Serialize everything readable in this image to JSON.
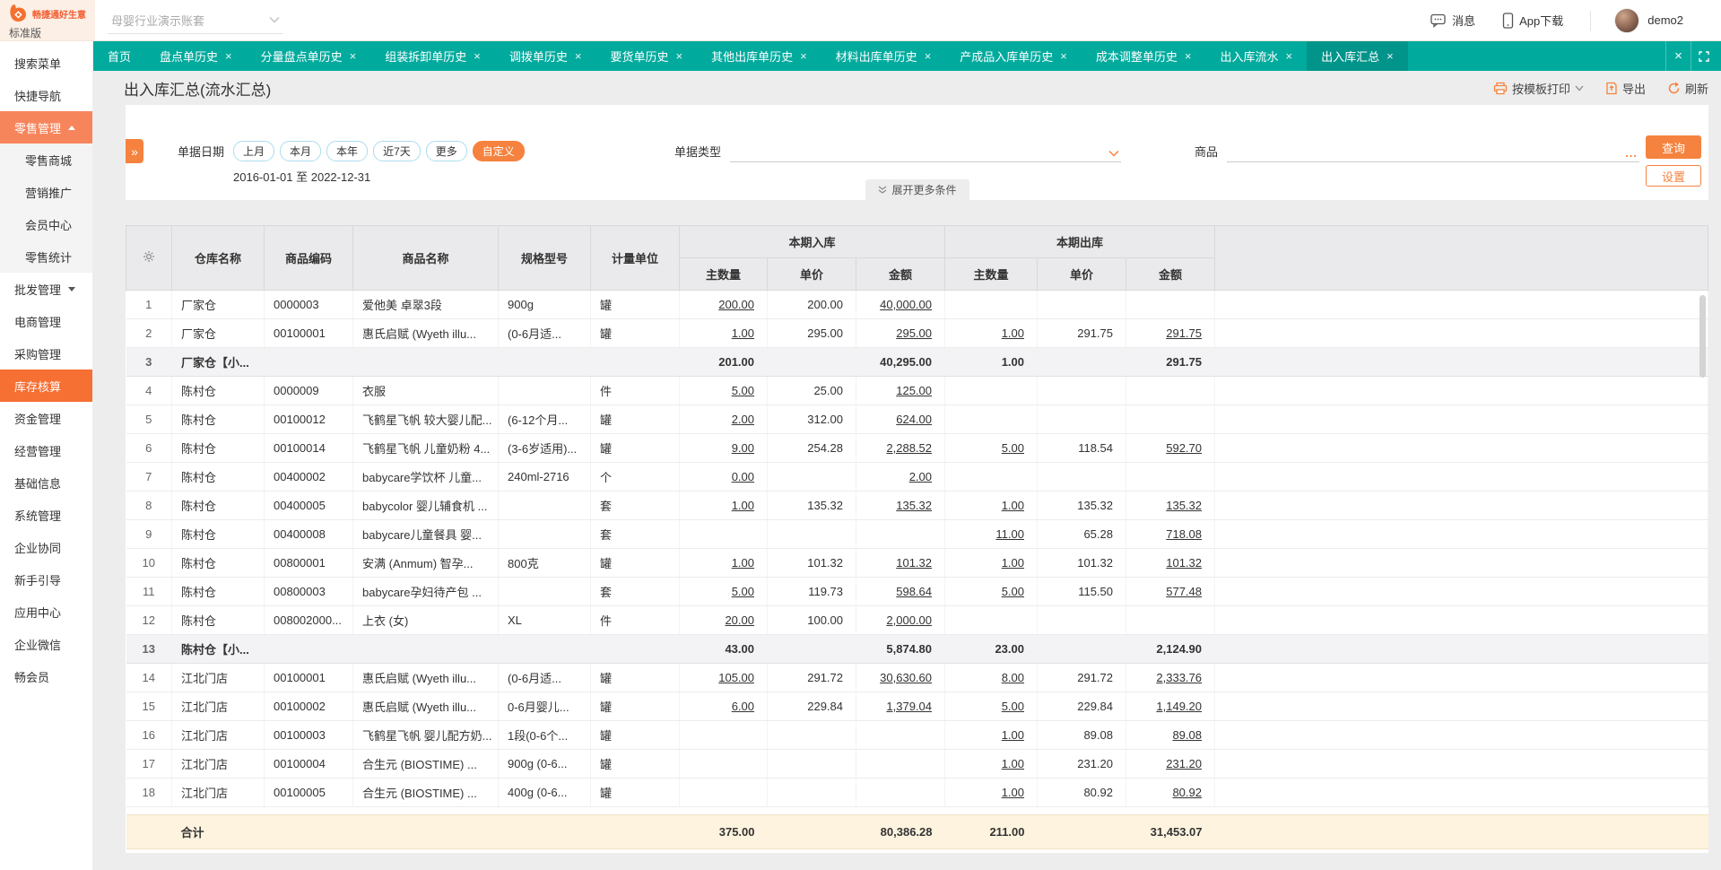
{
  "colors": {
    "accent": "#f5823e",
    "teal": "#00ab9e",
    "teal_active": "#00948a",
    "total_row_bg": "#fdf3de"
  },
  "topbar": {
    "brand": "畅捷通好生意",
    "edition": "标准版",
    "account_select": "母婴行业演示账套",
    "messages_label": "消息",
    "app_download_label": "App下载",
    "username": "demo2"
  },
  "tabs": {
    "items": [
      {
        "label": "首页",
        "closable": false,
        "active": false
      },
      {
        "label": "盘点单历史",
        "closable": true,
        "active": false
      },
      {
        "label": "分量盘点单历史",
        "closable": true,
        "active": false
      },
      {
        "label": "组装拆卸单历史",
        "closable": true,
        "active": false
      },
      {
        "label": "调拨单历史",
        "closable": true,
        "active": false
      },
      {
        "label": "要货单历史",
        "closable": true,
        "active": false
      },
      {
        "label": "其他出库单历史",
        "closable": true,
        "active": false
      },
      {
        "label": "材料出库单历史",
        "closable": true,
        "active": false
      },
      {
        "label": "产成品入库单历史",
        "closable": true,
        "active": false
      },
      {
        "label": "成本调整单历史",
        "closable": true,
        "active": false
      },
      {
        "label": "出入库流水",
        "closable": true,
        "active": false
      },
      {
        "label": "出入库汇总",
        "closable": true,
        "active": true
      }
    ]
  },
  "sidebar": {
    "items": [
      {
        "label": "搜索菜单",
        "style": "item"
      },
      {
        "label": "快捷导航",
        "style": "item"
      },
      {
        "label": "零售管理",
        "style": "group-open"
      },
      {
        "label": "零售商城",
        "style": "sub"
      },
      {
        "label": "营销推广",
        "style": "sub"
      },
      {
        "label": "会员中心",
        "style": "sub"
      },
      {
        "label": "零售统计",
        "style": "sub"
      },
      {
        "label": "批发管理",
        "style": "group-closed"
      },
      {
        "label": "电商管理",
        "style": "item"
      },
      {
        "label": "采购管理",
        "style": "item"
      },
      {
        "label": "库存核算",
        "style": "active"
      },
      {
        "label": "资金管理",
        "style": "item"
      },
      {
        "label": "经营管理",
        "style": "item"
      },
      {
        "label": "基础信息",
        "style": "item"
      },
      {
        "label": "系统管理",
        "style": "item"
      },
      {
        "label": "企业协同",
        "style": "item"
      },
      {
        "label": "新手引导",
        "style": "item"
      },
      {
        "label": "应用中心",
        "style": "item"
      },
      {
        "label": "企业微信",
        "style": "item"
      },
      {
        "label": "畅会员",
        "style": "item"
      }
    ]
  },
  "page": {
    "title": "出入库汇总(流水汇总)",
    "print_label": "按模板打印",
    "export_label": "导出",
    "refresh_label": "刷新"
  },
  "filters": {
    "date_label": "单据日期",
    "date_pills": [
      "上月",
      "本月",
      "本年",
      "近7天",
      "更多"
    ],
    "custom_pill": "自定义",
    "date_range": "2016-01-01 至 2022-12-31",
    "type_label": "单据类型",
    "product_label": "商品",
    "search_button": "查询",
    "settings_button": "设置",
    "expand_more": "展开更多条件"
  },
  "table": {
    "headers": {
      "warehouse": "仓库名称",
      "code": "商品编码",
      "name": "商品名称",
      "spec": "规格型号",
      "unit": "计量单位",
      "group_in": "本期入库",
      "group_out": "本期出库",
      "qty": "主数量",
      "price": "单价",
      "amount": "金额"
    },
    "rows": [
      {
        "type": "data",
        "cells": [
          "1",
          "厂家仓",
          "0000003",
          "爱他美 卓翠3段",
          "900g",
          "罐",
          "200.00",
          "200.00",
          "40,000.00",
          "",
          "",
          ""
        ]
      },
      {
        "type": "data",
        "cells": [
          "2",
          "厂家仓",
          "00100001",
          "惠氏启赋 (Wyeth illu...",
          "(0-6月适...",
          "罐",
          "1.00",
          "295.00",
          "295.00",
          "1.00",
          "291.75",
          "291.75"
        ]
      },
      {
        "type": "subtotal",
        "cells": [
          "3",
          "厂家仓【小...",
          "",
          "",
          "",
          "",
          "201.00",
          "",
          "40,295.00",
          "1.00",
          "",
          "291.75"
        ]
      },
      {
        "type": "data",
        "cells": [
          "4",
          "陈村仓",
          "0000009",
          "衣服",
          "",
          "件",
          "5.00",
          "25.00",
          "125.00",
          "",
          "",
          ""
        ]
      },
      {
        "type": "data",
        "cells": [
          "5",
          "陈村仓",
          "00100012",
          "飞鹤星飞帆 较大婴儿配...",
          "(6-12个月...",
          "罐",
          "2.00",
          "312.00",
          "624.00",
          "",
          "",
          ""
        ]
      },
      {
        "type": "data",
        "cells": [
          "6",
          "陈村仓",
          "00100014",
          "飞鹤星飞帆 儿童奶粉 4...",
          "(3-6岁适用)...",
          "罐",
          "9.00",
          "254.28",
          "2,288.52",
          "5.00",
          "118.54",
          "592.70"
        ]
      },
      {
        "type": "data",
        "cells": [
          "7",
          "陈村仓",
          "00400002",
          "babycare学饮杯 儿童...",
          "240ml-2716",
          "个",
          "0.00",
          "",
          "2.00",
          "",
          "",
          ""
        ]
      },
      {
        "type": "data",
        "cells": [
          "8",
          "陈村仓",
          "00400005",
          "babycolor 婴儿辅食机 ...",
          "",
          "套",
          "1.00",
          "135.32",
          "135.32",
          "1.00",
          "135.32",
          "135.32"
        ]
      },
      {
        "type": "data",
        "cells": [
          "9",
          "陈村仓",
          "00400008",
          "babycare儿童餐具 婴...",
          "",
          "套",
          "",
          "",
          "",
          "11.00",
          "65.28",
          "718.08"
        ]
      },
      {
        "type": "data",
        "cells": [
          "10",
          "陈村仓",
          "00800001",
          "安满 (Anmum) 智孕...",
          "800克",
          "罐",
          "1.00",
          "101.32",
          "101.32",
          "1.00",
          "101.32",
          "101.32"
        ]
      },
      {
        "type": "data",
        "cells": [
          "11",
          "陈村仓",
          "00800003",
          "babycare孕妇待产包 ...",
          "",
          "套",
          "5.00",
          "119.73",
          "598.64",
          "5.00",
          "115.50",
          "577.48"
        ]
      },
      {
        "type": "data",
        "cells": [
          "12",
          "陈村仓",
          "008002000...",
          "上衣 (女)",
          "XL",
          "件",
          "20.00",
          "100.00",
          "2,000.00",
          "",
          "",
          ""
        ]
      },
      {
        "type": "subtotal",
        "cells": [
          "13",
          "陈村仓【小...",
          "",
          "",
          "",
          "",
          "43.00",
          "",
          "5,874.80",
          "23.00",
          "",
          "2,124.90"
        ]
      },
      {
        "type": "data",
        "cells": [
          "14",
          "江北门店",
          "00100001",
          "惠氏启赋 (Wyeth illu...",
          "(0-6月适...",
          "罐",
          "105.00",
          "291.72",
          "30,630.60",
          "8.00",
          "291.72",
          "2,333.76"
        ]
      },
      {
        "type": "data",
        "cells": [
          "15",
          "江北门店",
          "00100002",
          "惠氏启赋 (Wyeth illu...",
          "0-6月婴儿...",
          "罐",
          "6.00",
          "229.84",
          "1,379.04",
          "5.00",
          "229.84",
          "1,149.20"
        ]
      },
      {
        "type": "data",
        "cells": [
          "16",
          "江北门店",
          "00100003",
          "飞鹤星飞帆 婴儿配方奶...",
          "1段(0-6个...",
          "罐",
          "",
          "",
          "",
          "1.00",
          "89.08",
          "89.08"
        ]
      },
      {
        "type": "data",
        "cells": [
          "17",
          "江北门店",
          "00100004",
          "合生元 (BIOSTIME) ...",
          "900g (0-6...",
          "罐",
          "",
          "",
          "",
          "1.00",
          "231.20",
          "231.20"
        ]
      },
      {
        "type": "data",
        "cells": [
          "18",
          "江北门店",
          "00100005",
          "合生元 (BIOSTIME) ...",
          "400g (0-6...",
          "罐",
          "",
          "",
          "",
          "1.00",
          "80.92",
          "80.92"
        ]
      },
      {
        "type": "total",
        "cells": [
          "",
          "合计",
          "",
          "",
          "",
          "",
          "375.00",
          "",
          "80,386.28",
          "211.00",
          "",
          "31,453.07"
        ]
      }
    ]
  }
}
